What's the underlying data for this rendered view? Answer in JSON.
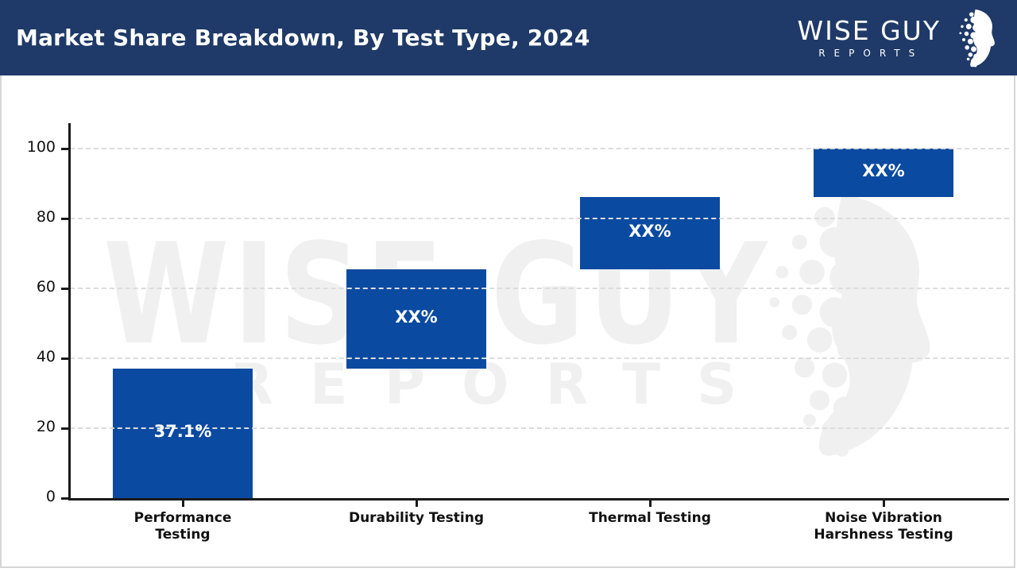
{
  "header": {
    "title": "Market Share Breakdown, By Test Type, 2024",
    "logo": {
      "wordmark": "WISE GUY",
      "subtext": "REPORTS"
    }
  },
  "watermark": {
    "wordmark": "WISE GUY",
    "subtext": "REPORTS"
  },
  "colors": {
    "header_bg": "#1f3a68",
    "title_text": "#ffffff",
    "bar": "#0b4aa1",
    "bar_label": "#ffffff",
    "axis": "#1a1a1a",
    "gridline": "#dcdcdc",
    "watermark": "#f0f0f0",
    "card_border": "#d6d6d6"
  },
  "chart_data": {
    "type": "bar",
    "subtype": "floating-waterfall",
    "title": "Market Share Breakdown, By Test Type, 2024",
    "categories": [
      "Performance Testing",
      "Durability Testing",
      "Thermal Testing",
      "Noise Vibration Harshness Testing"
    ],
    "segments": [
      {
        "category_lines": [
          "Performance",
          "Testing"
        ],
        "start": 0,
        "end": 37.1,
        "label": "37.1%"
      },
      {
        "category_lines": [
          "Durability Testing"
        ],
        "start": 37.1,
        "end": 65.5,
        "label": "XX%"
      },
      {
        "category_lines": [
          "Thermal Testing"
        ],
        "start": 65.5,
        "end": 86.2,
        "label": "XX%"
      },
      {
        "category_lines": [
          "Noise Vibration",
          "Harshness Testing"
        ],
        "start": 86.2,
        "end": 100,
        "label": "XX%"
      }
    ],
    "yticks": [
      0,
      20,
      40,
      60,
      80,
      100
    ],
    "ylim": [
      0,
      107
    ],
    "xlabel": "",
    "ylabel": "",
    "grid": "horizontal-dashed",
    "legend": "none"
  }
}
